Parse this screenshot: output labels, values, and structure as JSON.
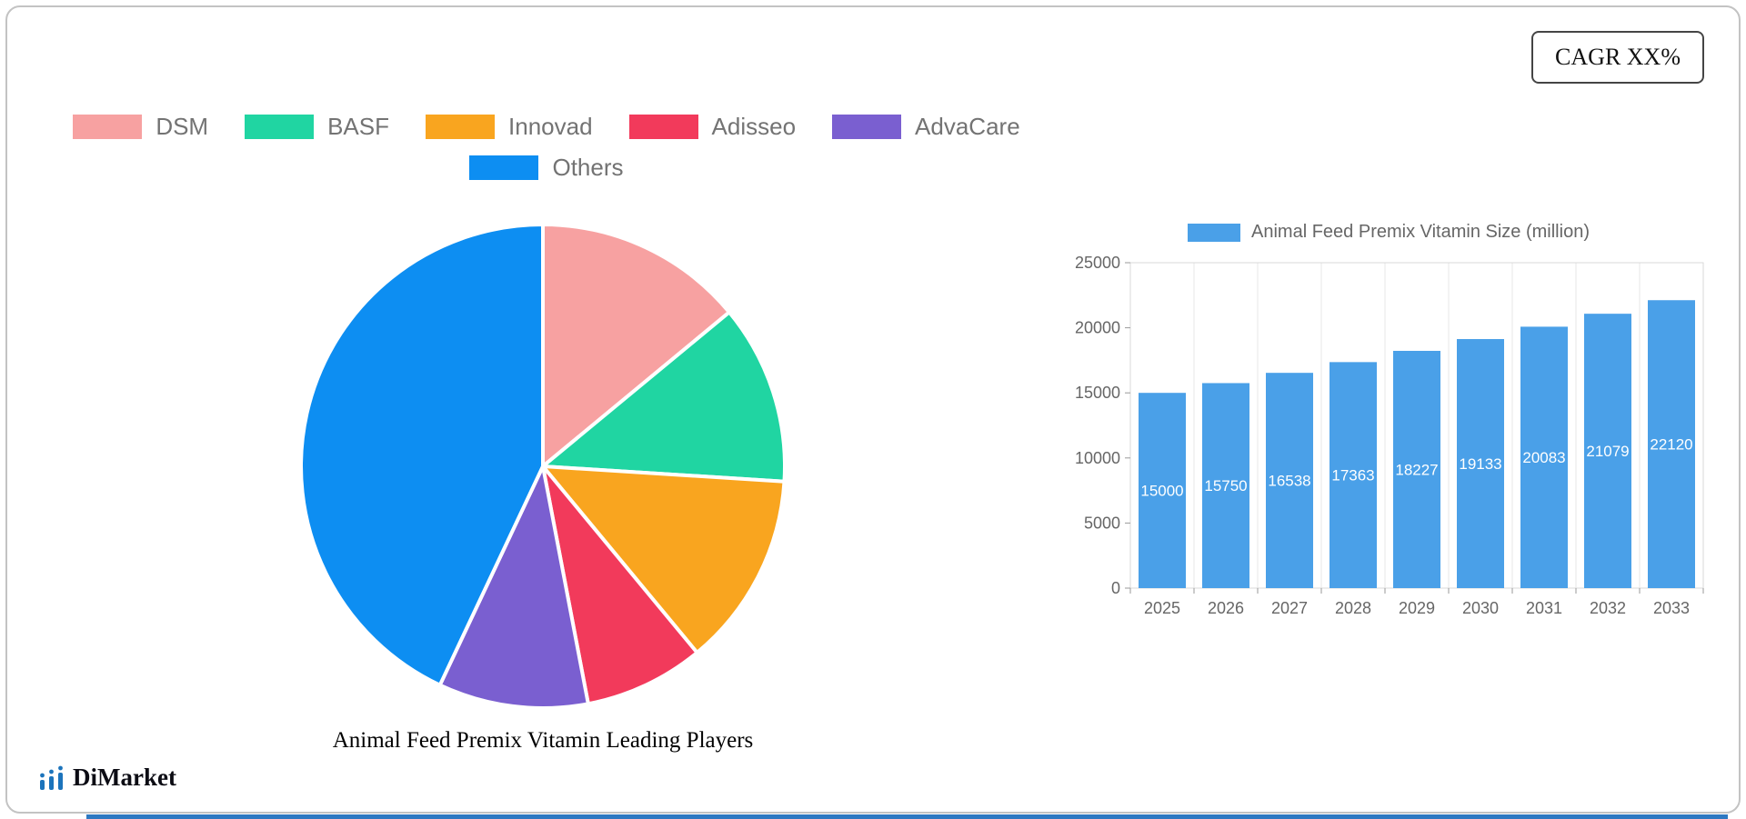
{
  "cagr": {
    "label": "CAGR XX%"
  },
  "branding": {
    "name": "DiMarket",
    "icon_color": "#1C74BC"
  },
  "chart_data": [
    {
      "type": "pie",
      "title": "Animal Feed Premix Vitamin Leading Players",
      "labels": [
        "DSM",
        "BASF",
        "Innovad",
        "Adisseo",
        "AdvaCare",
        "Others"
      ],
      "values": [
        14,
        12,
        13,
        8,
        10,
        43
      ],
      "colors": [
        "#F7A1A1",
        "#20D5A2",
        "#F9A51F",
        "#F23A5B",
        "#7A5FD0",
        "#0D8EF2"
      ],
      "start_angle": "12-oclock",
      "direction": "clockwise",
      "legend_position": "top"
    },
    {
      "type": "bar",
      "categories": [
        "2025",
        "2026",
        "2027",
        "2028",
        "2029",
        "2030",
        "2031",
        "2032",
        "2033"
      ],
      "series": [
        {
          "name": "Animal Feed Premix Vitamin Size (million)",
          "values": [
            15000,
            15750,
            16538,
            17363,
            18227,
            19133,
            20083,
            21079,
            22120
          ]
        }
      ],
      "bar_color": "#4AA0E8",
      "ylim": [
        0,
        25000
      ],
      "yticks": [
        0,
        5000,
        10000,
        15000,
        20000,
        25000
      ],
      "grid": "vertical",
      "legend_position": "top",
      "value_label_style": "white, centered inside bars"
    }
  ]
}
